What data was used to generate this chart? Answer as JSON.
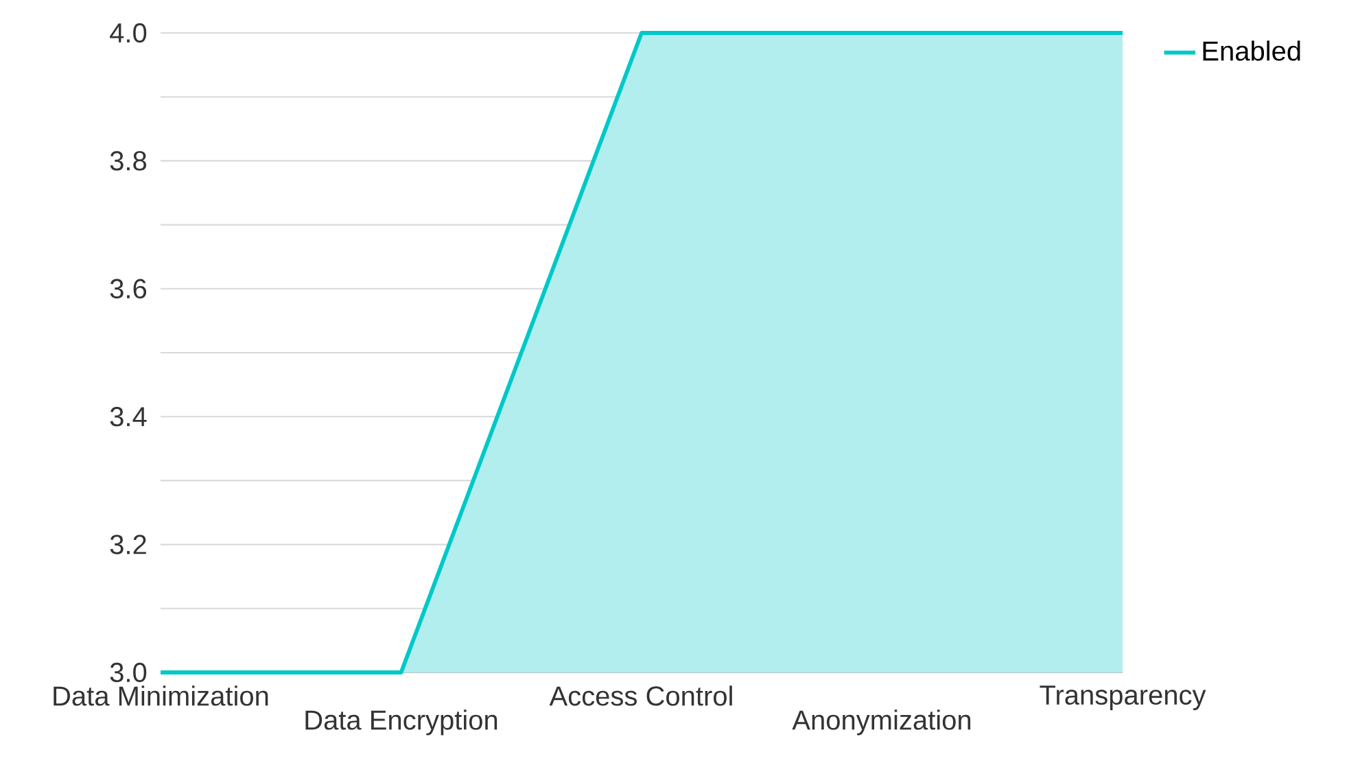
{
  "chart_data": {
    "type": "area",
    "categories": [
      "Data Minimization",
      "Data Encryption",
      "Access Control",
      "Anonymization",
      "Transparency"
    ],
    "series": [
      {
        "name": "Enabled",
        "color": "#00c8c8",
        "values": [
          3,
          3,
          4,
          4,
          4
        ]
      }
    ],
    "ylim": [
      3,
      4
    ],
    "yticks": [
      {
        "value": 3,
        "label": "3.0"
      },
      {
        "value": 3.1,
        "label": null
      },
      {
        "value": 3.2,
        "label": "3.2"
      },
      {
        "value": 3.3,
        "label": null
      },
      {
        "value": 3.4,
        "label": "3.4"
      },
      {
        "value": 3.5,
        "label": null
      },
      {
        "value": 3.6,
        "label": "3.6"
      },
      {
        "value": 3.7,
        "label": null
      },
      {
        "value": 3.8,
        "label": "3.8"
      },
      {
        "value": 3.9,
        "label": null
      },
      {
        "value": 4,
        "label": "4.0"
      }
    ],
    "grid": "y",
    "legend": "top right"
  }
}
